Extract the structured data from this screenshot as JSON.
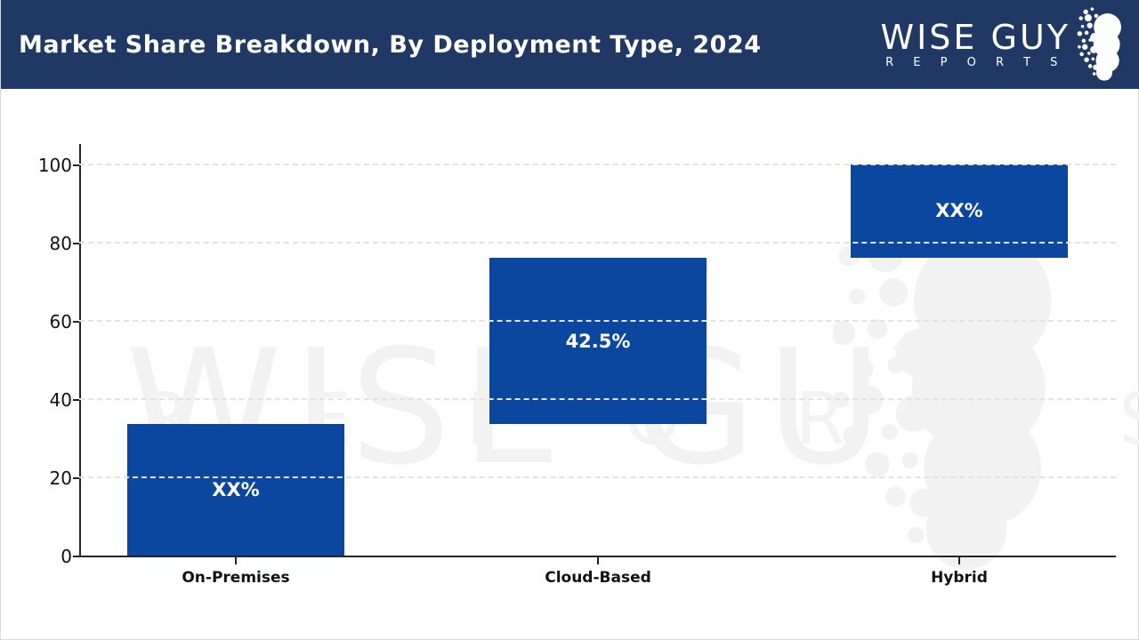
{
  "header": {
    "title": "Market Share Breakdown, By Deployment Type, 2024",
    "background_color": "#1F3864",
    "logo": {
      "line1": "WISE GUY",
      "line2": "R E P O R T S"
    }
  },
  "watermark": {
    "line1": "WISE GUY",
    "line2": "R E P O R T S"
  },
  "chart_data": {
    "type": "bar",
    "subtype": "waterfall",
    "title": "Market Share Breakdown, By Deployment Type, 2024",
    "categories": [
      "On-Premises",
      "Cloud-Based",
      "Hybrid"
    ],
    "segments": [
      {
        "category": "On-Premises",
        "start": 0,
        "end": 33.5,
        "label": "XX%"
      },
      {
        "category": "Cloud-Based",
        "start": 33.5,
        "end": 76,
        "label": "42.5%"
      },
      {
        "category": "Hybrid",
        "start": 76,
        "end": 100,
        "label": "XX%"
      }
    ],
    "xlabel": "",
    "ylabel": "",
    "y_ticks": [
      0,
      20,
      40,
      60,
      80,
      100
    ],
    "ylim": [
      0,
      105
    ],
    "bar_color": "#0B479E",
    "grid": "horizontal-dashed",
    "gridline_color": "#e2e2e2",
    "legend": "none"
  }
}
